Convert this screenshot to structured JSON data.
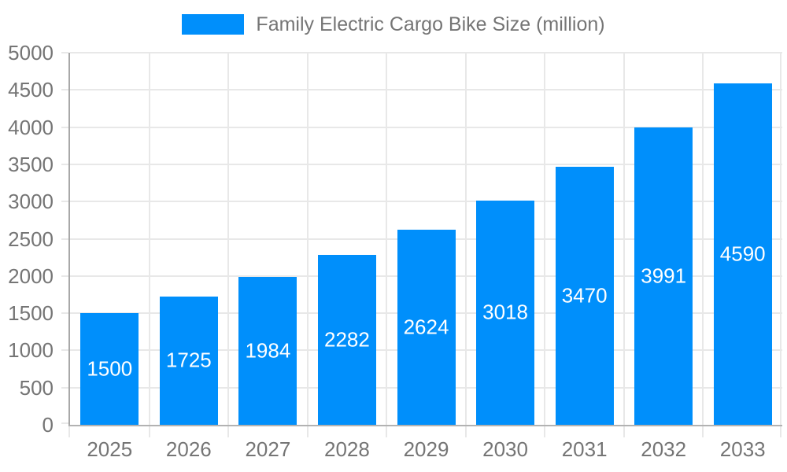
{
  "legend": {
    "label": "Family Electric Cargo Bike Size (million)"
  },
  "chart_data": {
    "type": "bar",
    "title": "Family Electric Cargo Bike Size (million)",
    "series_name": "Family Electric Cargo Bike Size (million)",
    "categories": [
      "2025",
      "2026",
      "2027",
      "2028",
      "2029",
      "2030",
      "2031",
      "2032",
      "2033"
    ],
    "values": [
      1500,
      1725,
      1984,
      2282,
      2624,
      3018,
      3470,
      3991,
      4590
    ],
    "value_labels": [
      "1500",
      "1725",
      "1984",
      "2282",
      "2624",
      "3018",
      "3470",
      "3991",
      "4590"
    ],
    "y_tick_labels": [
      "0",
      "500",
      "1000",
      "1500",
      "2000",
      "2500",
      "3000",
      "3500",
      "4000",
      "4500",
      "5000"
    ],
    "xlabel": "",
    "ylabel": "",
    "ylim": [
      0,
      5000
    ],
    "ytick_step": 500,
    "grid": "horizontal and vertical gridlines on",
    "legend_position": "top center",
    "bar_color": "#008ffb",
    "axis_label_color": "#757575",
    "value_label_color": "#ffffff",
    "grid_color": "#e8e8e8",
    "axis_line_color": "#a8a8a8",
    "background_color": "#ffffff"
  }
}
